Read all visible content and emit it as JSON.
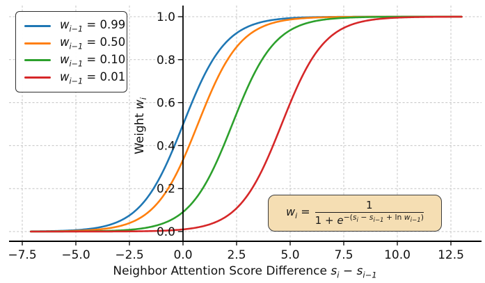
{
  "chart_data": {
    "type": "line",
    "title": "",
    "xlabel": "Neighbor Attention Score Difference s_i − s_{i−1}",
    "ylabel": "Weight w_i",
    "xlabel_parts": [
      {
        "t": "Neighbor Attention Score Difference "
      },
      {
        "i": "s"
      },
      {
        "sub": "i"
      },
      {
        "t": " − "
      },
      {
        "i": "s"
      },
      {
        "sub": "i−1"
      }
    ],
    "ylabel_parts": [
      {
        "t": "Weight "
      },
      {
        "i": "w"
      },
      {
        "sub": "i"
      }
    ],
    "grid": true,
    "grid_style": "dashed",
    "legend_position": "upper left",
    "xlim": [
      -8.1,
      13.9
    ],
    "ylim": [
      -0.045,
      1.052
    ],
    "x_ticks": [
      -7.5,
      -5.0,
      -2.5,
      0.0,
      2.5,
      5.0,
      7.5,
      10.0,
      12.5
    ],
    "x_tick_labels": [
      "−7.5",
      "−5.0",
      "−2.5",
      "0.0",
      "2.5",
      "5.0",
      "7.5",
      "10.0",
      "12.5"
    ],
    "y_ticks": [
      0.0,
      0.2,
      0.4,
      0.6,
      0.8,
      1.0
    ],
    "y_tick_labels": [
      "0.0",
      "0.2",
      "0.4",
      "0.6",
      "0.8",
      "1.0"
    ],
    "x_range": [
      -7.1,
      13.0
    ],
    "function": "w_i = 1 / (1 + exp(-(x + ln(w_prev)))) where x = s_i - s_{i-1}",
    "sample_x": [
      -7,
      -6,
      -5,
      -4,
      -3,
      -2,
      -1,
      0,
      1,
      2,
      3,
      4,
      5,
      6,
      7,
      8,
      9,
      10,
      11,
      12,
      13
    ],
    "series": [
      {
        "name": "w_{i-1} = 0.99",
        "w_prev": 0.99,
        "color": "#1f77b4",
        "midpoint_x": 0.01,
        "label_parts": [
          {
            "i": "w"
          },
          {
            "sub": "i−1"
          },
          {
            "t": " = 0.99"
          }
        ],
        "values": [
          0.0009,
          0.0025,
          0.0066,
          0.0178,
          0.047,
          0.1181,
          0.2669,
          0.4975,
          0.7291,
          0.8797,
          0.9521,
          0.9819,
          0.9932,
          0.9975,
          0.9991,
          0.9997,
          0.9999,
          1.0,
          1.0,
          1.0,
          1.0
        ]
      },
      {
        "name": "w_{i-1} = 0.50",
        "w_prev": 0.5,
        "color": "#ff7f0e",
        "midpoint_x": 0.69,
        "label_parts": [
          {
            "i": "w"
          },
          {
            "sub": "i−1"
          },
          {
            "t": " = 0.50"
          }
        ],
        "values": [
          0.0005,
          0.0012,
          0.0034,
          0.0091,
          0.0244,
          0.0635,
          0.1559,
          0.3333,
          0.5761,
          0.7873,
          0.9096,
          0.9648,
          0.9867,
          0.9951,
          0.9982,
          0.9993,
          0.9998,
          0.9999,
          1.0,
          1.0,
          1.0
        ]
      },
      {
        "name": "w_{i-1} = 0.10",
        "w_prev": 0.1,
        "color": "#2ca02c",
        "midpoint_x": 2.3,
        "label_parts": [
          {
            "i": "w"
          },
          {
            "sub": "i−1"
          },
          {
            "t": " = 0.10"
          }
        ],
        "values": [
          0.0001,
          0.0002,
          0.0007,
          0.0018,
          0.005,
          0.0133,
          0.0354,
          0.0909,
          0.2142,
          0.4249,
          0.6674,
          0.8455,
          0.937,
          0.9759,
          0.991,
          0.9967,
          0.9988,
          0.9995,
          0.9998,
          0.9999,
          1.0
        ]
      },
      {
        "name": "w_{i-1} = 0.01",
        "w_prev": 0.01,
        "color": "#d62728",
        "midpoint_x": 4.61,
        "label_parts": [
          {
            "i": "w"
          },
          {
            "sub": "i−1"
          },
          {
            "t": " = 0.01"
          }
        ],
        "values": [
          0.0,
          0.0,
          0.0001,
          0.0002,
          0.0005,
          0.0013,
          0.0037,
          0.0099,
          0.0264,
          0.0686,
          0.1667,
          0.3524,
          0.5974,
          0.8009,
          0.9161,
          0.9674,
          0.9878,
          0.9955,
          0.9983,
          0.9994,
          0.9998
        ]
      }
    ],
    "line_width": 2.6,
    "axis_color": "#000000",
    "grid_color": "#c4c4c4"
  },
  "formula": {
    "text": "w_i = 1 / (1 + e^(−(s_i − s_{i−1} + ln w_{i−1})))",
    "lhs_parts": [
      {
        "i": "w"
      },
      {
        "sub": "i"
      },
      {
        "t": " = "
      }
    ],
    "numerator": "1",
    "den_parts": [
      {
        "t": "1 + "
      },
      {
        "i": "e"
      },
      {
        "sup": [
          {
            "t": "−("
          },
          {
            "i": "s"
          },
          {
            "sub": "i"
          },
          {
            "t": " − "
          },
          {
            "i": "s"
          },
          {
            "sub": "i−1"
          },
          {
            "t": " + ln "
          },
          {
            "i": "w"
          },
          {
            "sub": "i−1"
          },
          {
            "t": ")"
          }
        ]
      }
    ],
    "background": "#f5deb3",
    "border_color": "#3b3b3b"
  }
}
